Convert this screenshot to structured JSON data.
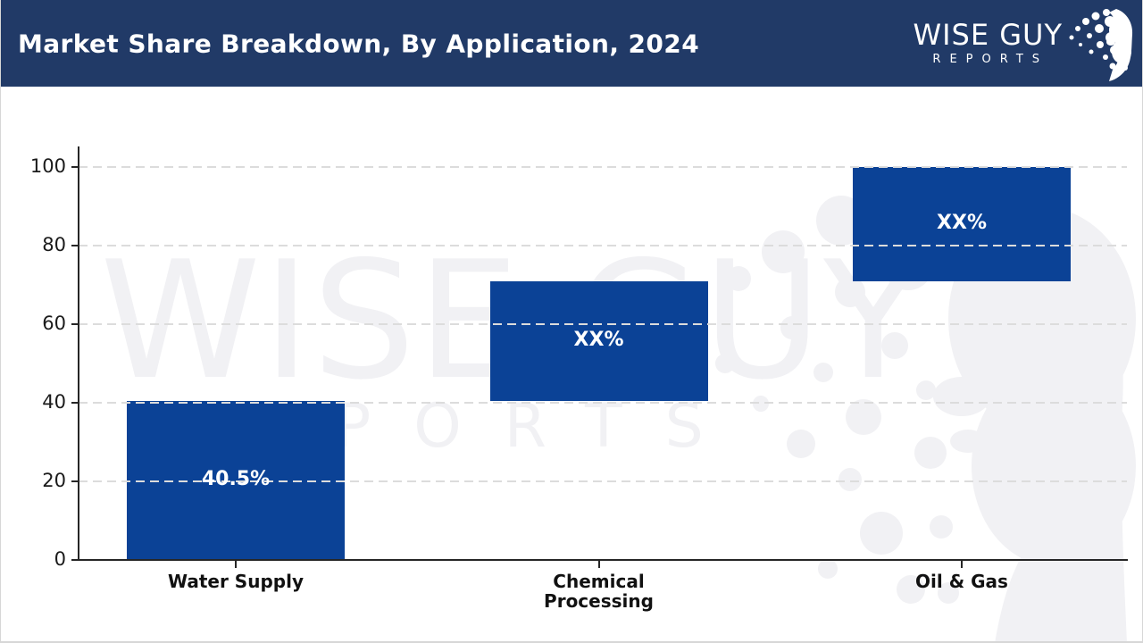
{
  "header": {
    "title": "Market Share Breakdown, By Application, 2024",
    "logo": {
      "name": "WISE GUY",
      "tagline": "REPORTS"
    }
  },
  "watermark": {
    "line1": "WISE GUY",
    "line2": "REPORTS"
  },
  "chart_data": {
    "type": "bar",
    "subtype": "floating-segment-waterfall",
    "title": "Market Share Breakdown, By Application, 2024",
    "categories": [
      "Water Supply",
      "Chemical Processing",
      "Oil & Gas"
    ],
    "bars": [
      {
        "category": "Water Supply",
        "display": "Water Supply",
        "start": 0,
        "end": 40.5,
        "value_label": "40.5%"
      },
      {
        "category": "Chemical Processing",
        "display": "Chemical\nProcessing",
        "start": 40.5,
        "end": 71,
        "value_label": "XX%"
      },
      {
        "category": "Oil & Gas",
        "display": "Oil & Gas",
        "start": 71,
        "end": 100,
        "value_label": "XX%"
      }
    ],
    "ylim": [
      0,
      100
    ],
    "yticks": [
      0,
      20,
      40,
      60,
      80,
      100
    ],
    "xlabel": "",
    "ylabel": "",
    "grid": true,
    "gridline_style": "dashed",
    "legend_position": "none",
    "colors": {
      "bar": "#0b4296",
      "bar_label": "#ffffff",
      "gridline": "#dcdcdc",
      "axis": "#262626",
      "header_bg": "#213a67",
      "watermark": "#f1f1f4"
    }
  }
}
